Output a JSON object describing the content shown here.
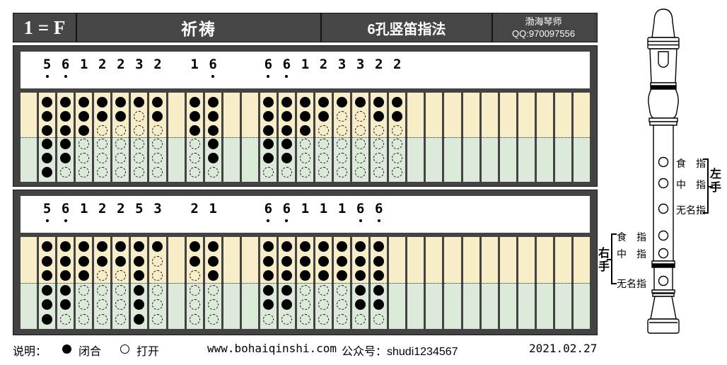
{
  "header": {
    "key_signature": "1 = F",
    "title": "祈祷",
    "subtitle": "6孔竖笛指法",
    "author": "渤海琴师",
    "qq": "QQ:970097556"
  },
  "sections": [
    {
      "name": "line-1",
      "columns": [
        {},
        {
          "n": "5",
          "dot": true,
          "h": "111111"
        },
        {
          "n": "6",
          "dot": true,
          "h": "111110"
        },
        {
          "n": "1",
          "dot": false,
          "h": "111000"
        },
        {
          "n": "2",
          "dot": false,
          "h": "110000"
        },
        {
          "n": "2",
          "dot": false,
          "h": "110000"
        },
        {
          "n": "3",
          "dot": false,
          "h": "100000"
        },
        {
          "n": "2",
          "dot": false,
          "h": "110000"
        },
        {},
        {
          "n": "1",
          "dot": false,
          "h": "111000"
        },
        {
          "n": "6",
          "dot": true,
          "h": "111110"
        },
        {},
        {},
        {
          "n": "6",
          "dot": true,
          "h": "111110"
        },
        {
          "n": "6",
          "dot": true,
          "h": "111110"
        },
        {
          "n": "1",
          "dot": false,
          "h": "111000"
        },
        {
          "n": "2",
          "dot": false,
          "h": "110000"
        },
        {
          "n": "3",
          "dot": false,
          "h": "100000"
        },
        {
          "n": "3",
          "dot": false,
          "h": "100000"
        },
        {
          "n": "2",
          "dot": false,
          "h": "110000"
        },
        {
          "n": "2",
          "dot": false,
          "h": "110000"
        },
        {},
        {},
        {},
        {},
        {},
        {},
        {},
        {},
        {},
        {}
      ]
    },
    {
      "name": "line-2",
      "columns": [
        {},
        {
          "n": "5",
          "dot": true,
          "h": "111111"
        },
        {
          "n": "6",
          "dot": true,
          "h": "111110"
        },
        {
          "n": "1",
          "dot": false,
          "h": "111000"
        },
        {
          "n": "2",
          "dot": false,
          "h": "110000"
        },
        {
          "n": "2",
          "dot": false,
          "h": "110000"
        },
        {
          "n": "5",
          "dot": false,
          "h": "111111"
        },
        {
          "n": "3",
          "dot": false,
          "h": "100000"
        },
        {},
        {
          "n": "2",
          "dot": false,
          "h": "110000"
        },
        {
          "n": "1",
          "dot": false,
          "h": "111000"
        },
        {},
        {},
        {
          "n": "6",
          "dot": true,
          "h": "111110"
        },
        {
          "n": "6",
          "dot": true,
          "h": "111110"
        },
        {
          "n": "1",
          "dot": false,
          "h": "111000"
        },
        {
          "n": "1",
          "dot": false,
          "h": "111000"
        },
        {
          "n": "1",
          "dot": false,
          "h": "111000"
        },
        {
          "n": "6",
          "dot": true,
          "h": "111110"
        },
        {
          "n": "6",
          "dot": true,
          "h": "111110"
        },
        {},
        {},
        {},
        {},
        {},
        {},
        {},
        {},
        {},
        {},
        {}
      ]
    }
  ],
  "legend": {
    "label": "说明：",
    "closed_label": "闭合",
    "open_label": "打开",
    "website": "www.bohaiqinshi.com",
    "wechat": "公众号：shudi1234567",
    "date": "2021.02.27"
  },
  "recorder": {
    "left_hand": {
      "label": "左手",
      "fingers": [
        "食　指",
        "中　指",
        "无名指"
      ]
    },
    "right_hand": {
      "label": "右手",
      "fingers": [
        "食　指",
        "中　指",
        "无名指"
      ]
    }
  },
  "colors": {
    "panel": "#434343",
    "upper_rows": "#f8edc9",
    "lower_rows": "#dcead9",
    "closed_hole": "#000000",
    "strip": "#ffffff"
  }
}
